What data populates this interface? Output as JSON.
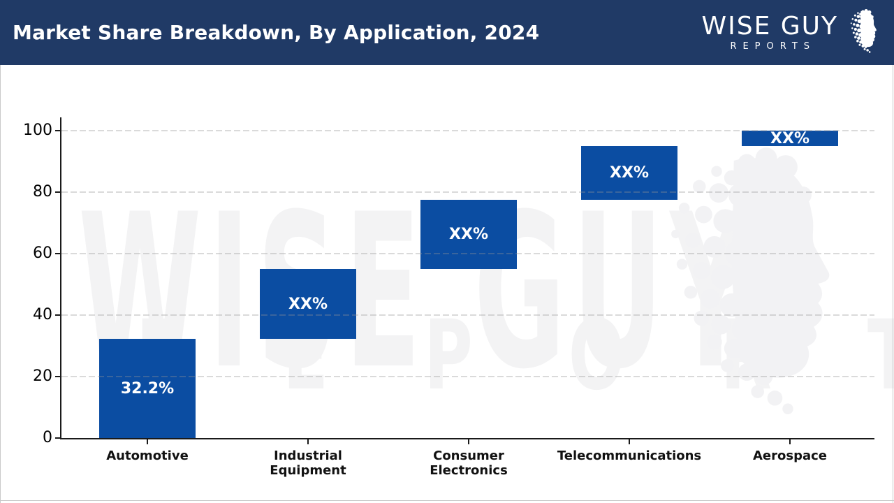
{
  "header": {
    "title": "Market Share Breakdown, By Application, 2024",
    "background_color": "#203a66",
    "text_color": "#ffffff",
    "logo": {
      "line1": "WISE GUY",
      "line2": "REPORTS",
      "head_icon": "dotted-head-profile"
    }
  },
  "watermark": {
    "line1": "WISE GUY",
    "line2": "R E P O R T S",
    "head_icon": "dotted-head-profile",
    "color": "#f3f3f4"
  },
  "chart_data": {
    "type": "bar",
    "subtype": "waterfall",
    "title": "Market Share Breakdown, By Application, 2024",
    "xlabel": "",
    "ylabel": "",
    "categories": [
      "Automotive",
      "Industrial Equipment",
      "Consumer Electronics",
      "Telecommunications",
      "Aerospace"
    ],
    "series": [
      {
        "name": "Market Share %",
        "segments": [
          {
            "category": "Automotive",
            "start": 0,
            "end": 32.2,
            "label": "32.2%"
          },
          {
            "category": "Industrial Equipment",
            "start": 32.2,
            "end": 55,
            "label": "XX%"
          },
          {
            "category": "Consumer Electronics",
            "start": 55,
            "end": 77.5,
            "label": "XX%"
          },
          {
            "category": "Telecommunications",
            "start": 77.5,
            "end": 95,
            "label": "XX%"
          },
          {
            "category": "Aerospace",
            "start": 95,
            "end": 100,
            "label": "XX%"
          }
        ]
      }
    ],
    "ylim": [
      0,
      100
    ],
    "yticks": [
      0,
      20,
      40,
      60,
      80,
      100
    ],
    "grid": "dashed-horizontal-over-bars",
    "legend": "none",
    "bar_color": "#0b4da2",
    "bar_label_color": "#ffffff",
    "axis_color": "#1a1a1a"
  }
}
